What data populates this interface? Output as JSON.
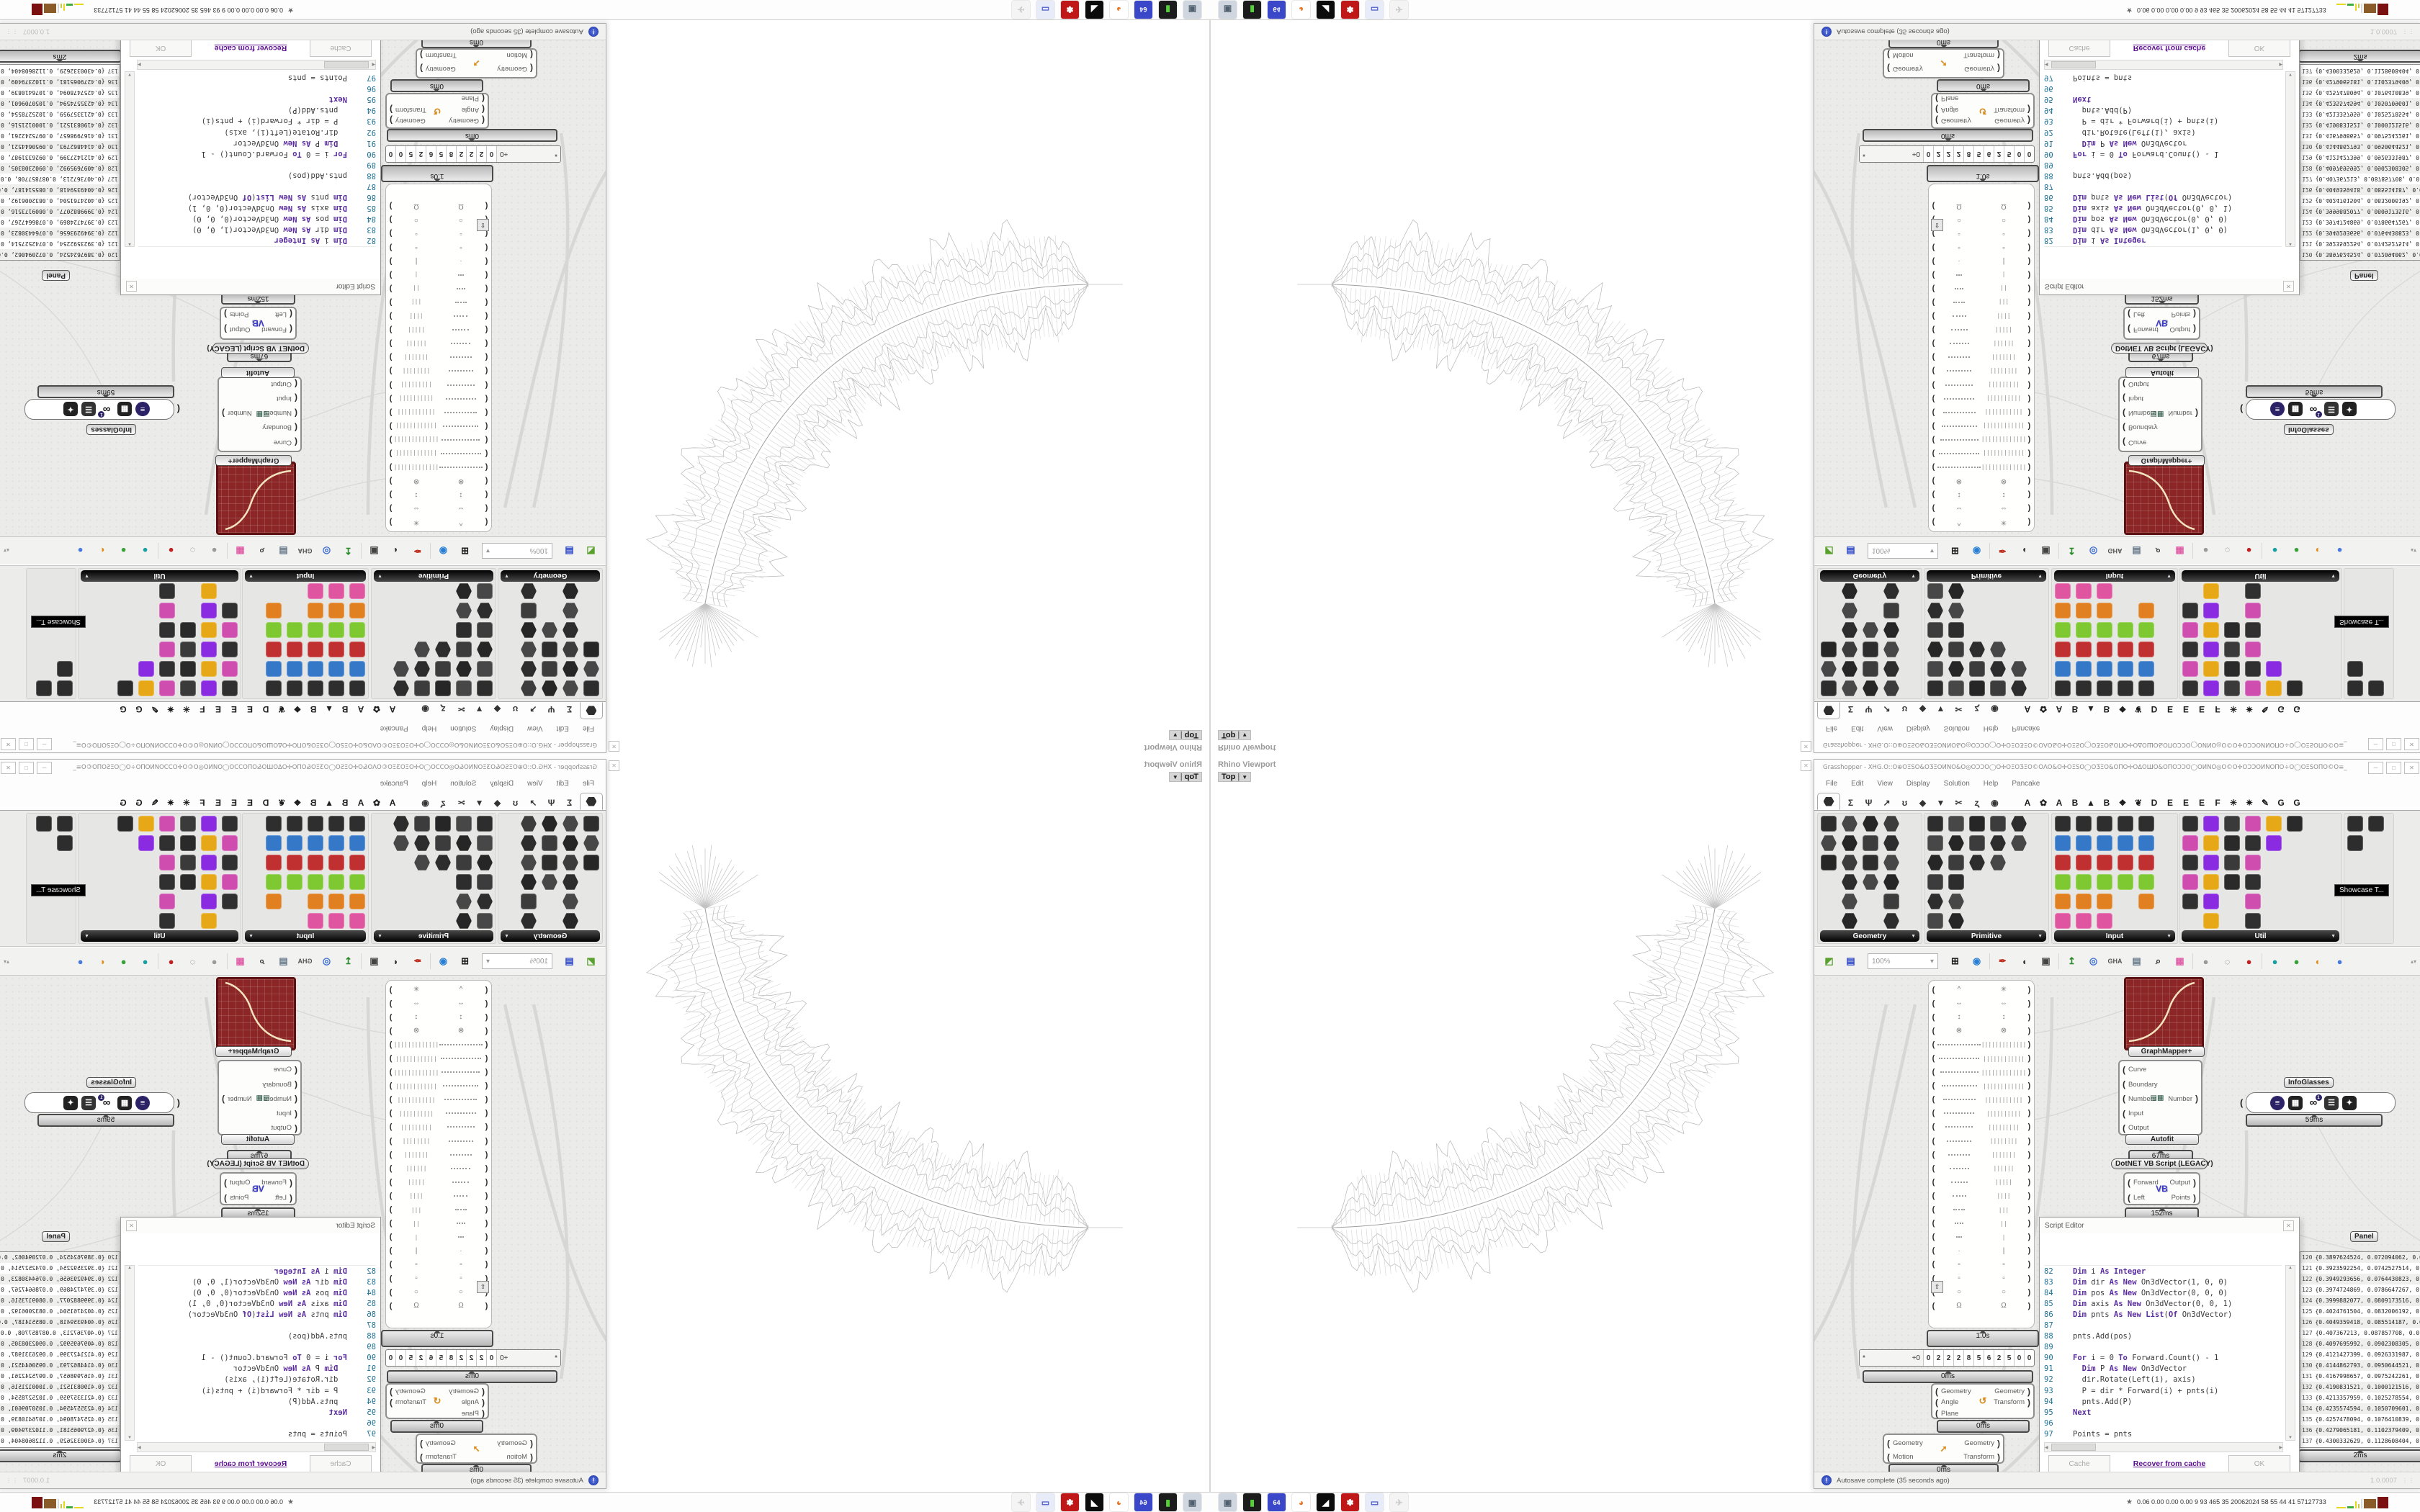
{
  "viewport": {
    "panel_label": "Rhino Viewport",
    "tab": "Top"
  },
  "gh": {
    "title": "Grasshopper - XHG.O::O⊕OΞSO&OƷΞOИNO&O◎OƆƆO◯O✢OΞOƷΞO©OΛO&O✢OΞSO◯OƷΞO&OΠO✢OΔOШO&OΠOƆƆO◯OИNO◎O©O✢OƆƆOИNOΠO÷O◯OΞSOΠO©O≡_",
    "window_buttons": [
      "─",
      "□",
      "✕"
    ],
    "menu": [
      "File",
      "Edit",
      "View",
      "Display",
      "Solution",
      "Help",
      "Pancake"
    ],
    "statusbar": {
      "text": "Autosave complete (35 seconds ago)",
      "version": "1.0.0007"
    }
  },
  "tabs": {
    "glyphs": [
      "Σ",
      "Ψ",
      "↗",
      "ʊ",
      "◆",
      "▼",
      "✂",
      "ʐ",
      "◉"
    ],
    "letters": [
      "A",
      "✿",
      "A",
      "B",
      "▲",
      "B",
      "❖",
      "❦",
      "D",
      "E",
      "E",
      "E",
      "F",
      "✳",
      "✷",
      "✎",
      "G",
      "G"
    ]
  },
  "palettes": {
    "groups": [
      {
        "label": "Geometry"
      },
      {
        "label": "Primitive"
      },
      {
        "label": "Input"
      },
      {
        "label": "Util"
      }
    ],
    "showcase_tooltip": "Showcase T..."
  },
  "toolbar": {
    "zoom": "100%",
    "gha": "GHA"
  },
  "canvas": {
    "graphmapper": {
      "label": "GraphMapper+"
    },
    "autofit": {
      "inputs": [
        "Curve",
        "Boundary",
        "Numbers",
        "Input",
        "Output"
      ],
      "output_row": 2,
      "output": "Number",
      "tag": "Autofit",
      "time": "67ms"
    },
    "infoglasses": {
      "label": "InfoGlasses",
      "time": "59ms",
      "badge": "1"
    },
    "vb": {
      "header": "DotNET VB Script (LEGACY)",
      "rows": [
        [
          "Forward",
          "Output"
        ],
        [
          "Left",
          "Points"
        ]
      ],
      "icon": "VB",
      "time": "152ms"
    },
    "rotate": {
      "rows": [
        [
          "Geometry",
          "Geometry"
        ],
        [
          "Angle",
          "Transform"
        ],
        [
          "Plane",
          ""
        ]
      ],
      "time": "0ms"
    },
    "move": {
      "rows": [
        [
          "Geometry",
          "Geometry"
        ],
        [
          "Motion",
          "Transform"
        ]
      ],
      "time": "0ms"
    },
    "slider_cluster": {
      "timer": "1.0s"
    },
    "number_slider": {
      "prefix": "*",
      "left_value": "+0",
      "digits": [
        "0",
        "2",
        "2",
        "2",
        "8",
        "5",
        "6",
        "2",
        "5",
        "0",
        "0"
      ],
      "time": "0ms"
    },
    "panel": {
      "tag": "Panel",
      "time": "2ms",
      "rows": [
        {
          "n": "120",
          "v": "{0.3897624524, 0.072094062, 0.0}"
        },
        {
          "n": "121",
          "v": "{0.3923592254, 0.0742527514, 0.0}"
        },
        {
          "n": "122",
          "v": "{0.3949293656, 0.0764430823, 0.0}"
        },
        {
          "n": "123",
          "v": "{0.3974724869, 0.0786647267, 0.0}"
        },
        {
          "n": "124",
          "v": "{0.3999882077, 0.0809173516, 0.0}"
        },
        {
          "n": "125",
          "v": "{0.4024761504, 0.0832006192, 0.0}"
        },
        {
          "n": "126",
          "v": "{0.4049359418, 0.085514187, 0.0}"
        },
        {
          "n": "127",
          "v": "{0.407367213, 0.087857708, 0.0}"
        },
        {
          "n": "128",
          "v": "{0.4097695992, 0.0902308305, 0.0}"
        },
        {
          "n": "129",
          "v": "{0.4121427399, 0.0926331987, 0.0}"
        },
        {
          "n": "130",
          "v": "{0.4144862793, 0.0950644521, 0.0}"
        },
        {
          "n": "131",
          "v": "{0.4167998657, 0.0975242261, 0.0}"
        },
        {
          "n": "132",
          "v": "{0.4190831521, 0.1000121516, 0.0}"
        },
        {
          "n": "133",
          "v": "{0.4213357959, 0.1025278554, 0.0}"
        },
        {
          "n": "134",
          "v": "{0.4235574594, 0.1050709601, 0.0}"
        },
        {
          "n": "135",
          "v": "{0.4257478094, 0.1076410839, 0.0}"
        },
        {
          "n": "136",
          "v": "{0.4279065181, 0.1102379409, 0.0}"
        },
        {
          "n": "137",
          "v": "{0.4300332629, 0.1128608404, 0.0}"
        }
      ]
    }
  },
  "script_editor": {
    "title": "Script Editor",
    "lines": [
      {
        "n": "82",
        "c": "Dim i As Integer"
      },
      {
        "n": "83",
        "c": "Dim dir As New On3dVector(1, 0, 0)"
      },
      {
        "n": "84",
        "c": "Dim pos As New On3dVector(0, 0, 0)"
      },
      {
        "n": "85",
        "c": "Dim axis As New On3dVector(0, 0, 1)"
      },
      {
        "n": "86",
        "c": "Dim pnts As New List(Of On3dVector)"
      },
      {
        "n": "87",
        "c": ""
      },
      {
        "n": "88",
        "c": "pnts.Add(pos)"
      },
      {
        "n": "89",
        "c": ""
      },
      {
        "n": "90",
        "c": "For i = 0 To Forward.Count() - 1"
      },
      {
        "n": "91",
        "c": "  Dim P As New On3dVector"
      },
      {
        "n": "92",
        "c": "  dir.Rotate(Left(i), axis)"
      },
      {
        "n": "93",
        "c": "  P = dir * Forward(i) + pnts(i)"
      },
      {
        "n": "94",
        "c": "  pnts.Add(P)"
      },
      {
        "n": "95",
        "c": "Next"
      },
      {
        "n": "96",
        "c": ""
      },
      {
        "n": "97",
        "c": "Points = pnts"
      }
    ],
    "buttons": {
      "cache": "Cache",
      "recover": "Recover from cache",
      "ok": "OK"
    }
  },
  "taskbar": {
    "stats": "0.06 0.00 0.00 0.00    9    93    465    35    20062024   58    55    44    41   57127733",
    "icons": [
      {
        "name": "screen-capture-app-icon",
        "glyph": "▣",
        "bg": "#cfd6df",
        "fg": "#51606f"
      },
      {
        "name": "emulator-app-icon",
        "glyph": "▮",
        "bg": "#1c1c1c",
        "fg": "#57d13a"
      },
      {
        "name": "floppy-64-app-icon",
        "glyph": "64",
        "bg": "#3947c8",
        "fg": "#ffffff"
      },
      {
        "name": "firefox-icon",
        "glyph": "◕",
        "bg": "#ffffff",
        "fg": "#e8701a"
      },
      {
        "name": "cat-app-icon",
        "glyph": "◢",
        "bg": "#0c0c0c",
        "fg": "#ffffff"
      },
      {
        "name": "red-gear-app-icon",
        "glyph": "✽",
        "bg": "#c01818",
        "fg": "#ffffff"
      },
      {
        "name": "frame-app-icon",
        "glyph": "▭",
        "bg": "#e8ecf8",
        "fg": "#4a5ac8"
      },
      {
        "name": "faded-app-icon",
        "glyph": "✈",
        "bg": "#f4f4f4",
        "fg": "#cccccc"
      }
    ]
  },
  "colors": {
    "graphmapper_curve": "#f2e4c0",
    "graphmapper_bg": "#8c2626",
    "accent_purple": "#5a2d9e",
    "link_purple": "#5c0f8e",
    "navy_icon": "#2b2366",
    "wire_gray": "#d7d7d5"
  }
}
